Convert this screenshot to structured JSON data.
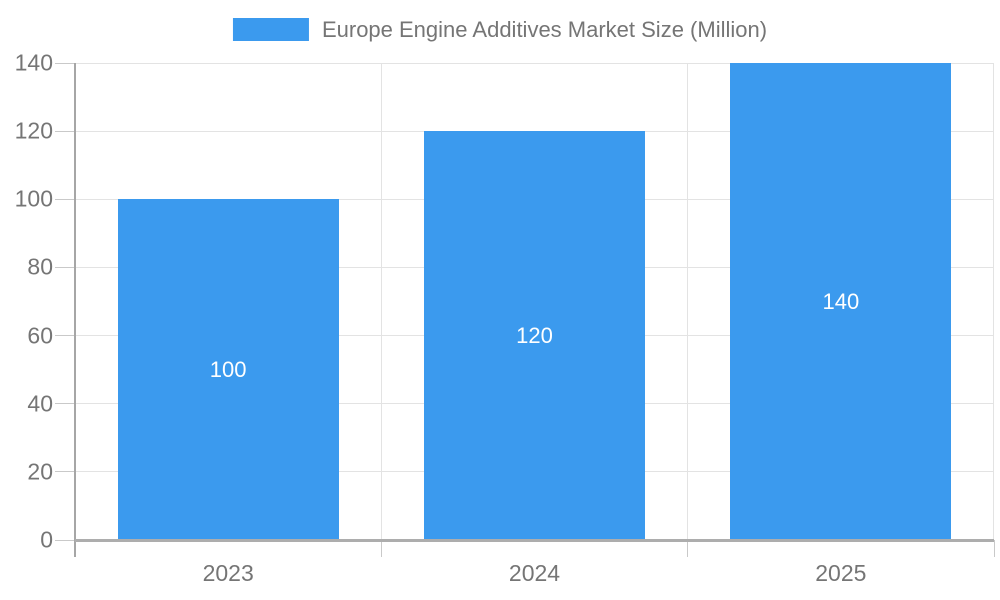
{
  "chart_data": {
    "type": "bar",
    "title": "Europe Engine Additives Market Size (Million)",
    "legend": {
      "label": "Europe Engine Additives Market Size (Million)",
      "position": "top-center"
    },
    "categories": [
      "2023",
      "2024",
      "2025"
    ],
    "series": [
      {
        "name": "Europe Engine Additives Market Size (Million)",
        "values": [
          100,
          120,
          140
        ],
        "value_labels": [
          "100",
          "120",
          "140"
        ]
      }
    ],
    "xlabel": "",
    "ylabel": "",
    "ylim": [
      0,
      140
    ],
    "yticks": [
      0,
      20,
      40,
      60,
      80,
      100,
      120,
      140
    ],
    "grid": true,
    "colors": {
      "bar": "#3B9AEE",
      "axis_label": "#757575",
      "value_label": "#FFFFFF",
      "gridline": "#E3E3E3",
      "axis_line": "#A6A6A6",
      "baseline": "#ADADAD",
      "tick": "#C9C9C9",
      "background": "#FFFFFF"
    }
  }
}
